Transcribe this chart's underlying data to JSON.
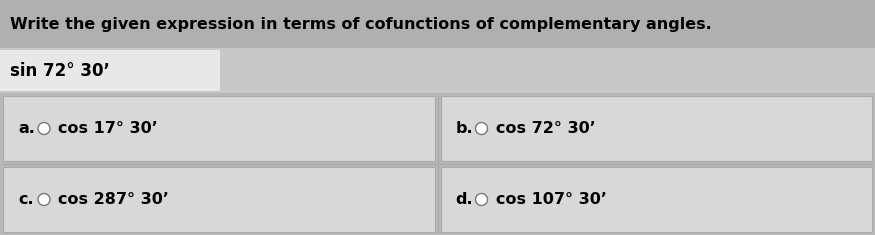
{
  "title": "Write the given expression in terms of cofunctions of complementary angles.",
  "question": "sin 72° 30’",
  "options": [
    {
      "label": "a.",
      "text": "cos 17° 30’"
    },
    {
      "label": "b.",
      "text": "cos 72° 30’"
    },
    {
      "label": "c.",
      "text": "cos 287° 30’"
    },
    {
      "label": "d.",
      "text": "cos 107° 30’"
    }
  ],
  "bg_header": "#b0b0b0",
  "bg_question": "#c8c8c8",
  "bg_cell": "#d8d8d8",
  "bg_fig": "#b8b8b8",
  "bg_divider": "#a0a0a0",
  "text_color": "#000000",
  "cell_border": "#aaaaaa",
  "title_fontsize": 11.5,
  "question_fontsize": 12,
  "option_fontsize": 11.5,
  "label_fontsize": 11.5
}
